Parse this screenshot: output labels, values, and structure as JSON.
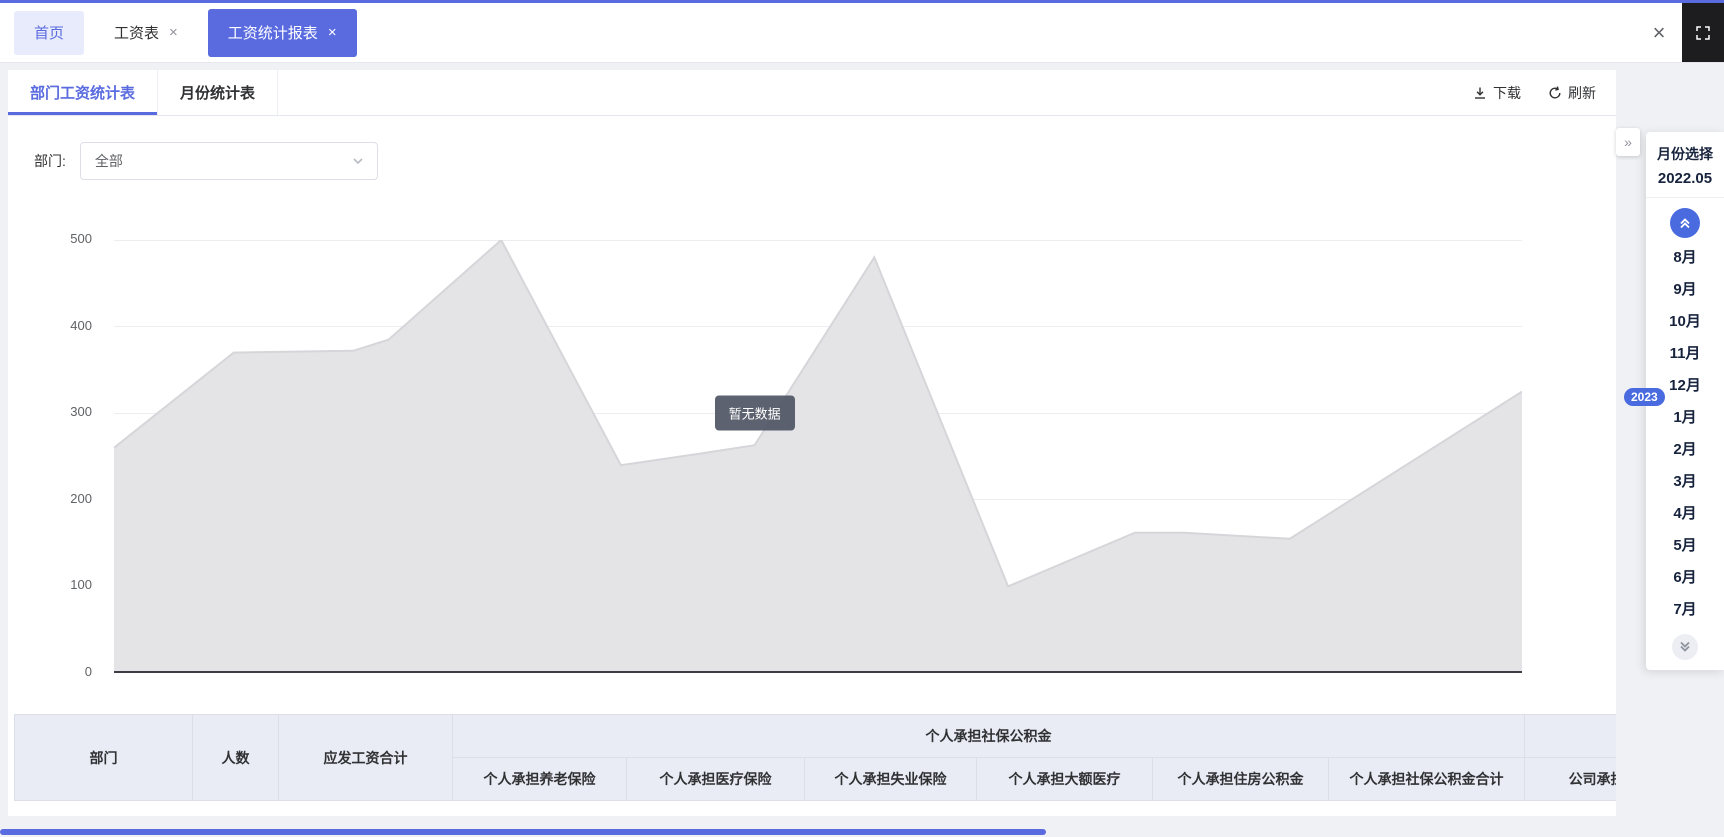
{
  "accent_color": "#5a6be0",
  "top_tabs": {
    "home": "首页",
    "salary": "工资表",
    "report": "工资统计报表",
    "close_icon": "×"
  },
  "window_controls": {
    "close": "×"
  },
  "sub_tabs": {
    "dept": "部门工资统计表",
    "month": "月份统计表"
  },
  "actions": {
    "download": "下载",
    "refresh": "刷新"
  },
  "filter": {
    "label": "部门:",
    "value": "全部"
  },
  "chart_data": {
    "type": "area",
    "title": "",
    "xlabel": "",
    "ylabel": "",
    "ylim": [
      0,
      500
    ],
    "yticks": [
      0,
      100,
      200,
      300,
      400,
      500
    ],
    "grid": true,
    "x_axis_labels": [],
    "x_percent": [
      0,
      8.5,
      17,
      19.5,
      27.5,
      36,
      41.5,
      45.5,
      54,
      63.5,
      72.5,
      76,
      83.5,
      100
    ],
    "values": [
      260,
      370,
      372,
      385,
      500,
      240,
      253,
      263,
      480,
      100,
      162,
      162,
      155,
      325
    ],
    "series_color": "#e4e4e7",
    "line_color": "#d6d6da",
    "axis_color": "#3d3d46",
    "no_data_badge": "暂无数据"
  },
  "table": {
    "col_dept": "部门",
    "col_count": "人数",
    "col_total": "应发工资合计",
    "group_personal": "个人承担社保公积金",
    "personal_cols": [
      "个人承担养老保险",
      "个人承担医疗保险",
      "个人承担失业保险",
      "个人承担大额医疗",
      "个人承担住房公积金",
      "个人承担社保公积金合计"
    ],
    "col_company": "公司承担养老保险"
  },
  "month_panel": {
    "collapse": "»",
    "title": "月份选择",
    "current": "2022.05",
    "year_badge": "2023",
    "months": [
      "8月",
      "9月",
      "10月",
      "11月",
      "12月",
      "1月",
      "2月",
      "3月",
      "4月",
      "5月",
      "6月",
      "7月"
    ]
  }
}
